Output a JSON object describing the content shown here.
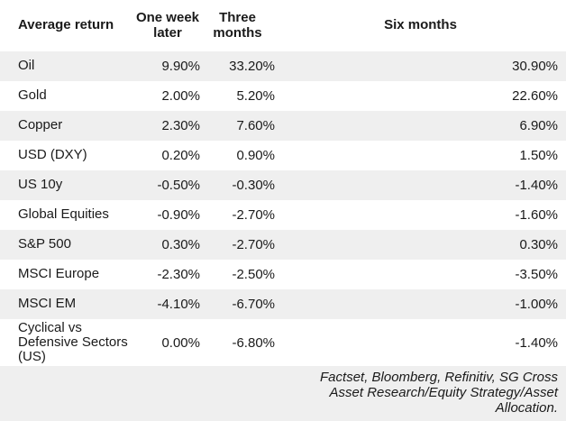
{
  "table": {
    "headers": [
      "Average return",
      "One week later",
      "Three months",
      "Six months"
    ],
    "rows": [
      [
        "Oil",
        "9.90%",
        "33.20%",
        "30.90%"
      ],
      [
        "Gold",
        "2.00%",
        "5.20%",
        "22.60%"
      ],
      [
        "Copper",
        "2.30%",
        "7.60%",
        "6.90%"
      ],
      [
        "USD (DXY)",
        "0.20%",
        "0.90%",
        "1.50%"
      ],
      [
        "US 10y",
        "-0.50%",
        "-0.30%",
        "-1.40%"
      ],
      [
        "Global Equities",
        "-0.90%",
        "-2.70%",
        "-1.60%"
      ],
      [
        "S&P 500",
        "0.30%",
        "-2.70%",
        "0.30%"
      ],
      [
        "MSCI Europe",
        "-2.30%",
        "-2.50%",
        "-3.50%"
      ],
      [
        "MSCI EM",
        "-4.10%",
        "-6.70%",
        "-1.00%"
      ],
      [
        "Cyclical vs Defensive Sectors (US)",
        "0.00%",
        "-6.80%",
        "-1.40%"
      ]
    ],
    "source_note": "Factset, Bloomberg, Refinitiv, SG Cross Asset Research/Equity Strategy/Asset Allocation."
  },
  "colors": {
    "band": "#efefef",
    "text": "#1a1a1a",
    "background": "#ffffff"
  },
  "chart_data": {
    "type": "table",
    "title": "Average return",
    "columns": [
      "Average return",
      "One week later",
      "Three months",
      "Six months"
    ],
    "categories": [
      "Oil",
      "Gold",
      "Copper",
      "USD (DXY)",
      "US 10y",
      "Global Equities",
      "S&P 500",
      "MSCI Europe",
      "MSCI EM",
      "Cyclical vs Defensive Sectors (US)"
    ],
    "series": [
      {
        "name": "One week later",
        "values": [
          9.9,
          2.0,
          2.3,
          0.2,
          -0.5,
          -0.9,
          0.3,
          -2.3,
          -4.1,
          0.0
        ]
      },
      {
        "name": "Three months",
        "values": [
          33.2,
          5.2,
          7.6,
          0.9,
          -0.3,
          -2.7,
          -2.7,
          -2.5,
          -6.7,
          -6.8
        ]
      },
      {
        "name": "Six months",
        "values": [
          30.9,
          22.6,
          6.9,
          1.5,
          -1.4,
          -1.6,
          0.3,
          -3.5,
          -1.0,
          -1.4
        ]
      }
    ],
    "unit": "%",
    "source": "Factset, Bloomberg, Refinitiv, SG Cross Asset Research/Equity Strategy/Asset Allocation."
  }
}
